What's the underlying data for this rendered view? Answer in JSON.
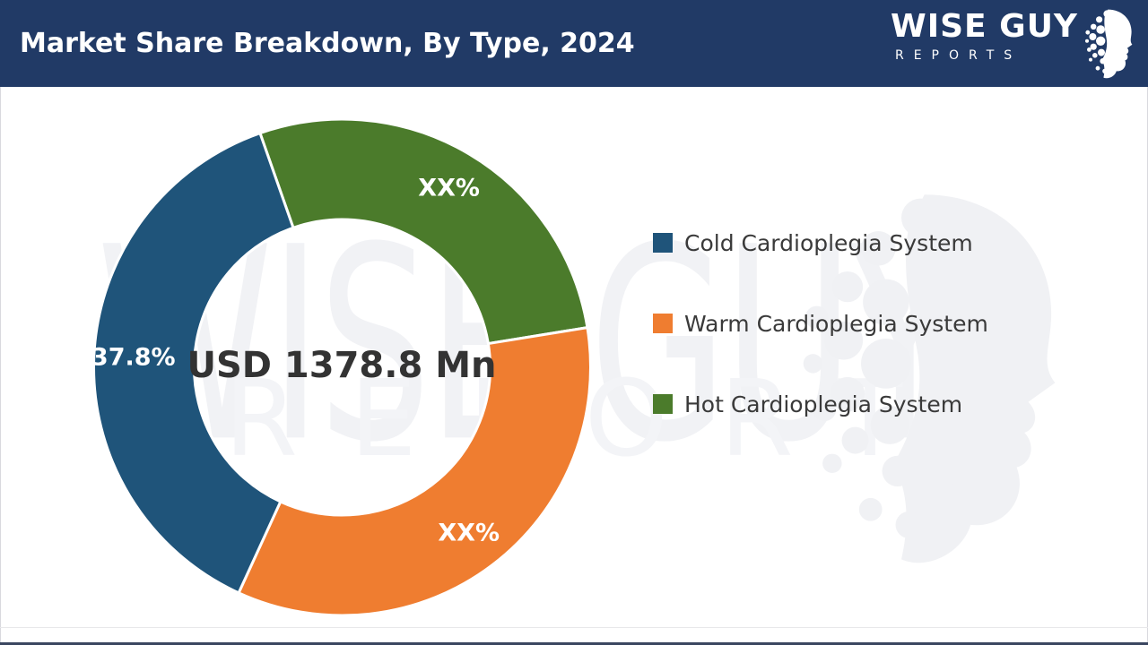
{
  "header": {
    "title": "Market Share Breakdown, By Type, 2024",
    "logo": {
      "line1": "WISE GUY",
      "line2": "REPORTS"
    }
  },
  "chart_data": {
    "type": "donut",
    "title": "Market Share Breakdown, By Type, 2024",
    "center_label": "USD 1378.8 Mn",
    "start_angle_deg": -19.3,
    "draw_order": [
      2,
      1,
      0
    ],
    "legend_position": "right",
    "segments": [
      {
        "label": "Cold Cardioplegia System",
        "value_pct": 37.8,
        "display_label": "37.8%",
        "color": "#1F547A"
      },
      {
        "label": "Warm Cardioplegia System",
        "value_pct": 34.4,
        "display_label": "XX%",
        "color": "#EF7D30"
      },
      {
        "label": "Hot Cardioplegia System",
        "value_pct": 27.8,
        "display_label": "XX%",
        "color": "#4B7B2B"
      }
    ]
  },
  "watermark": {
    "line1": "WISE GUY",
    "line2": "REPORTS"
  },
  "colors": {
    "header_bg": "#213A66",
    "center_text": "#333333",
    "legend_text": "#3A3A3A",
    "watermark": "#F0F1F4"
  }
}
